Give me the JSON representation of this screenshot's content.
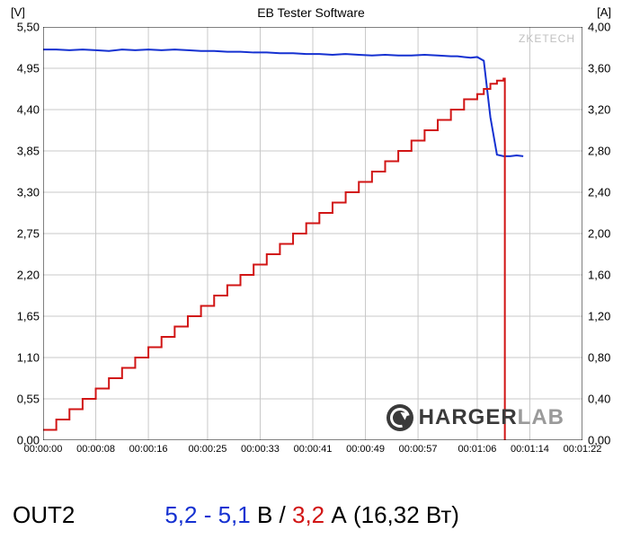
{
  "chart": {
    "type": "line-dual-axis",
    "title": "EB Tester Software",
    "watermark": "ZKETECH",
    "background_color": "#ffffff",
    "grid_color": "#c8c8c8",
    "border_color": "#000000",
    "left_axis": {
      "label": "[V]",
      "min": 0.0,
      "max": 5.5,
      "ticks": [
        0.0,
        0.55,
        1.1,
        1.65,
        2.2,
        2.75,
        3.3,
        3.85,
        4.4,
        4.95,
        5.5
      ],
      "tick_labels": [
        "0,00",
        "0,55",
        "1,10",
        "1,65",
        "2,20",
        "2,75",
        "3,30",
        "3,85",
        "4,40",
        "4,95",
        "5,50"
      ],
      "label_fontsize": 13
    },
    "right_axis": {
      "label": "[A]",
      "min": 0.0,
      "max": 4.0,
      "ticks": [
        0.0,
        0.4,
        0.8,
        1.2,
        1.6,
        2.0,
        2.4,
        2.8,
        3.2,
        3.6,
        4.0
      ],
      "tick_labels": [
        "0,00",
        "0,40",
        "0,80",
        "1,20",
        "1,60",
        "2,00",
        "2,40",
        "2,80",
        "3,20",
        "3,60",
        "4,00"
      ],
      "label_fontsize": 13
    },
    "x_axis": {
      "min": 0,
      "max": 82,
      "ticks": [
        0,
        8,
        16,
        25,
        33,
        41,
        49,
        57,
        66,
        74,
        82
      ],
      "tick_labels": [
        "00:00:00",
        "00:00:08",
        "00:00:16",
        "00:00:25",
        "00:00:33",
        "00:00:41",
        "00:00:49",
        "00:00:57",
        "00:01:06",
        "00:01:14",
        "00:01:22"
      ],
      "label_fontsize": 11
    },
    "series": {
      "voltage": {
        "axis": "left",
        "color": "#1531d1",
        "line_width": 2,
        "x": [
          0,
          2,
          4,
          6,
          8,
          10,
          12,
          14,
          16,
          18,
          20,
          22,
          24,
          26,
          28,
          30,
          32,
          34,
          36,
          38,
          40,
          42,
          44,
          46,
          48,
          50,
          52,
          54,
          56,
          58,
          60,
          62,
          63,
          64,
          65,
          66,
          67,
          68,
          69,
          70,
          71,
          72,
          73
        ],
        "y": [
          5.2,
          5.2,
          5.19,
          5.2,
          5.19,
          5.18,
          5.2,
          5.19,
          5.2,
          5.19,
          5.2,
          5.19,
          5.18,
          5.18,
          5.17,
          5.17,
          5.16,
          5.16,
          5.15,
          5.15,
          5.14,
          5.14,
          5.13,
          5.14,
          5.13,
          5.12,
          5.13,
          5.12,
          5.12,
          5.13,
          5.12,
          5.11,
          5.11,
          5.1,
          5.09,
          5.1,
          5.05,
          4.3,
          3.8,
          3.78,
          3.78,
          3.79,
          3.78
        ]
      },
      "current": {
        "axis": "right",
        "color": "#d11515",
        "line_width": 2,
        "step": true,
        "x": [
          0,
          2,
          4,
          6,
          8,
          10,
          12,
          14,
          16,
          18,
          20,
          22,
          24,
          26,
          28,
          30,
          32,
          34,
          36,
          38,
          40,
          42,
          44,
          46,
          48,
          50,
          52,
          54,
          56,
          58,
          60,
          62,
          64,
          66,
          67,
          68,
          69,
          70,
          70.2
        ],
        "y": [
          0.1,
          0.2,
          0.3,
          0.4,
          0.5,
          0.6,
          0.7,
          0.8,
          0.9,
          1.0,
          1.1,
          1.2,
          1.3,
          1.4,
          1.5,
          1.6,
          1.7,
          1.8,
          1.9,
          2.0,
          2.1,
          2.2,
          2.3,
          2.4,
          2.5,
          2.6,
          2.7,
          2.8,
          2.9,
          3.0,
          3.1,
          3.2,
          3.3,
          3.35,
          3.4,
          3.45,
          3.48,
          3.5,
          0.0
        ]
      }
    },
    "logo": {
      "part1": "HARGER",
      "part2": "LAB"
    }
  },
  "footer": {
    "port_label": "OUT2",
    "voltage_text": "5,2 - 5,1",
    "voltage_unit": " В / ",
    "current_text": "3,2",
    "power_text": " А (16,32 Вт)"
  }
}
